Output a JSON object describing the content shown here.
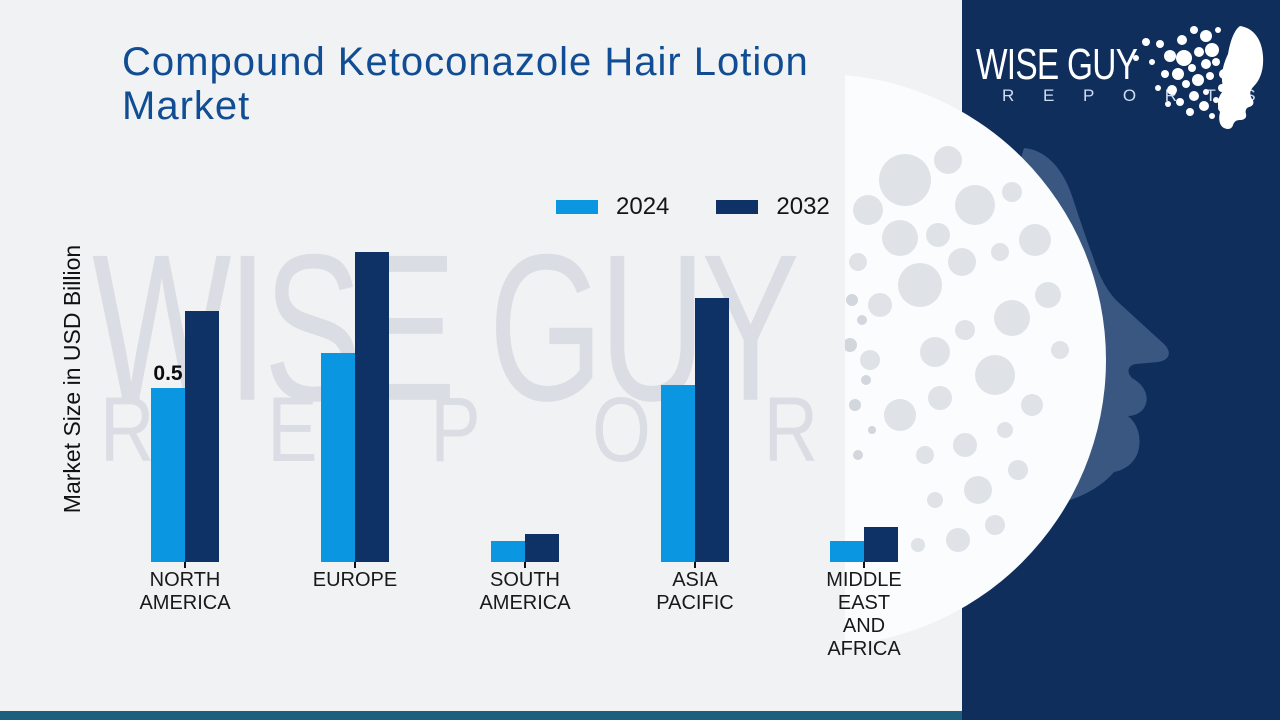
{
  "header": {
    "title": "Compound Ketoconazole Hair Lotion\nMarket"
  },
  "logo": {
    "brand_line1": "WISE GUY",
    "brand_line2": "R E P O R T S"
  },
  "watermark": {
    "line1": "WISE GUY",
    "line2": "R E P O R T S"
  },
  "theme": {
    "background": "#f1f2f3",
    "panel_color": "#0f2e5c",
    "footer_color": "#1d5f7d",
    "title_color": "#114d94",
    "watermark_color": "#dadde3",
    "circle_color": "#fbfcfd",
    "blob_color": "#dfe3e8",
    "face_color": "#3a5781"
  },
  "chart_data": {
    "type": "bar",
    "title": "Compound Ketoconazole Hair Lotion Market",
    "xlabel": "",
    "ylabel": "Market Size in USD Billion",
    "categories": [
      "NORTH\nAMERICA",
      "EUROPE",
      "SOUTH\nAMERICA",
      "ASIA\nPACIFIC",
      "MIDDLE\nEAST\nAND\nAFRICA"
    ],
    "series": [
      {
        "name": "2024",
        "color": "#0a96e0",
        "values": [
          0.5,
          0.6,
          0.06,
          0.51,
          0.06
        ]
      },
      {
        "name": "2032",
        "color": "#0e3166",
        "values": [
          0.72,
          0.89,
          0.08,
          0.76,
          0.1
        ]
      }
    ],
    "ylim": [
      0,
      1
    ],
    "grid": false,
    "legend_position": "top",
    "annotations": [
      {
        "category_index": 0,
        "series_index": 0,
        "text": "0.5"
      }
    ]
  }
}
